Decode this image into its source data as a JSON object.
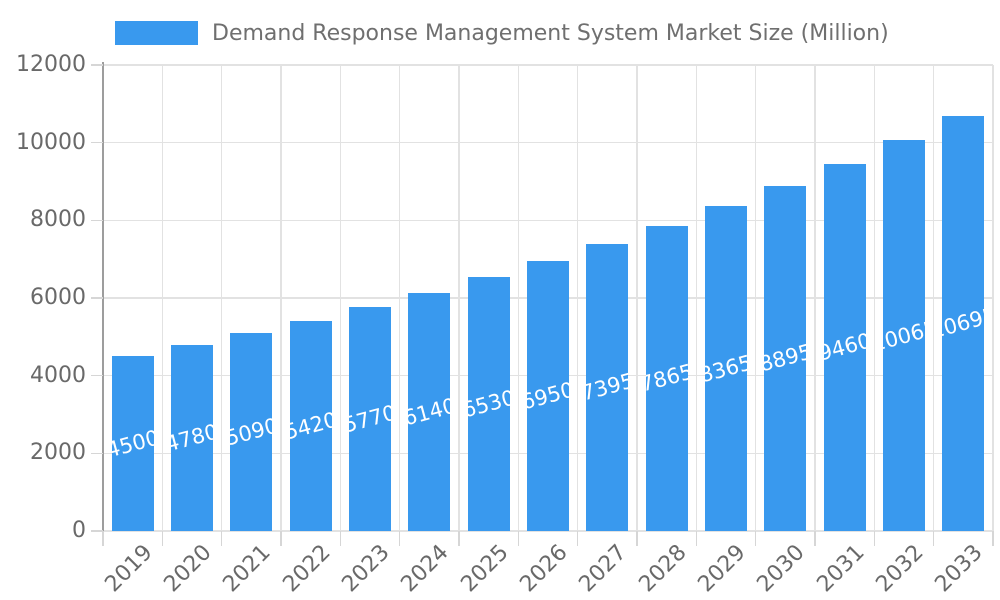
{
  "legend": {
    "label": "Demand Response Management System Market Size (Million)"
  },
  "chart_data": {
    "type": "bar",
    "title": "Demand Response Management System Market Size (Million)",
    "categories": [
      "2019",
      "2020",
      "2021",
      "2022",
      "2023",
      "2024",
      "2025",
      "2026",
      "2027",
      "2028",
      "2029",
      "2030",
      "2031",
      "2032",
      "2033"
    ],
    "values": [
      4500,
      4780,
      5090,
      5420,
      5770,
      6140,
      6530,
      6950,
      7395,
      7865,
      8365,
      8895,
      9460,
      10065,
      10695
    ],
    "xlabel": "",
    "ylabel": "",
    "ylim": [
      0,
      12000
    ],
    "yticks": [
      0,
      2000,
      4000,
      6000,
      8000,
      10000,
      12000
    ],
    "grid": true,
    "legend_position": "top",
    "bar_color": "#3999ee",
    "value_label_color": "#ffffff",
    "value_label_rotation_deg": -15,
    "x_label_rotation_deg": -45
  },
  "colors": {
    "background": "#ffffff",
    "gridline": "#e2e2e2",
    "axis_line": "#9d9d9d",
    "tick_mark": "#d6d6d6",
    "tick_label": "#696969",
    "legend_text": "#6f6f6f"
  }
}
